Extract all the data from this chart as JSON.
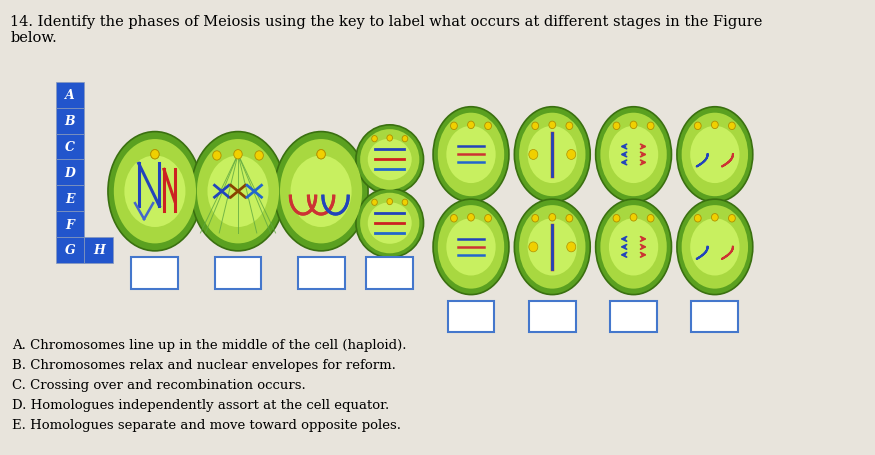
{
  "title_line1": "14. Identify the phases of Meiosis using the key to label what occurs at different stages in the Figure",
  "title_line2": "below.",
  "title_fontsize": 10.5,
  "bg_color": "#e8e4dc",
  "key_labels": [
    "A",
    "B",
    "C",
    "D",
    "E",
    "F",
    "G",
    "H"
  ],
  "key_color": "#2255cc",
  "key_text_color": "#ffffff",
  "legend_lines": [
    "A. Chromosomes line up in the middle of the cell (haploid).",
    "B. Chromosomes relax and nuclear envelopes for reform.",
    "C. Crossing over and recombination occurs.",
    "D. Homologues independently assort at the cell equator.",
    "E. Homologues separate and move toward opposite poles."
  ],
  "legend_fontsize": 9.5,
  "box_color": "#4477cc",
  "cell_outer_color": "#5aa020",
  "cell_inner_color": "#a8d840",
  "cell_mid_color": "#c8f060",
  "centriole_color": "#f0d000",
  "spindle_color": "#60a840"
}
